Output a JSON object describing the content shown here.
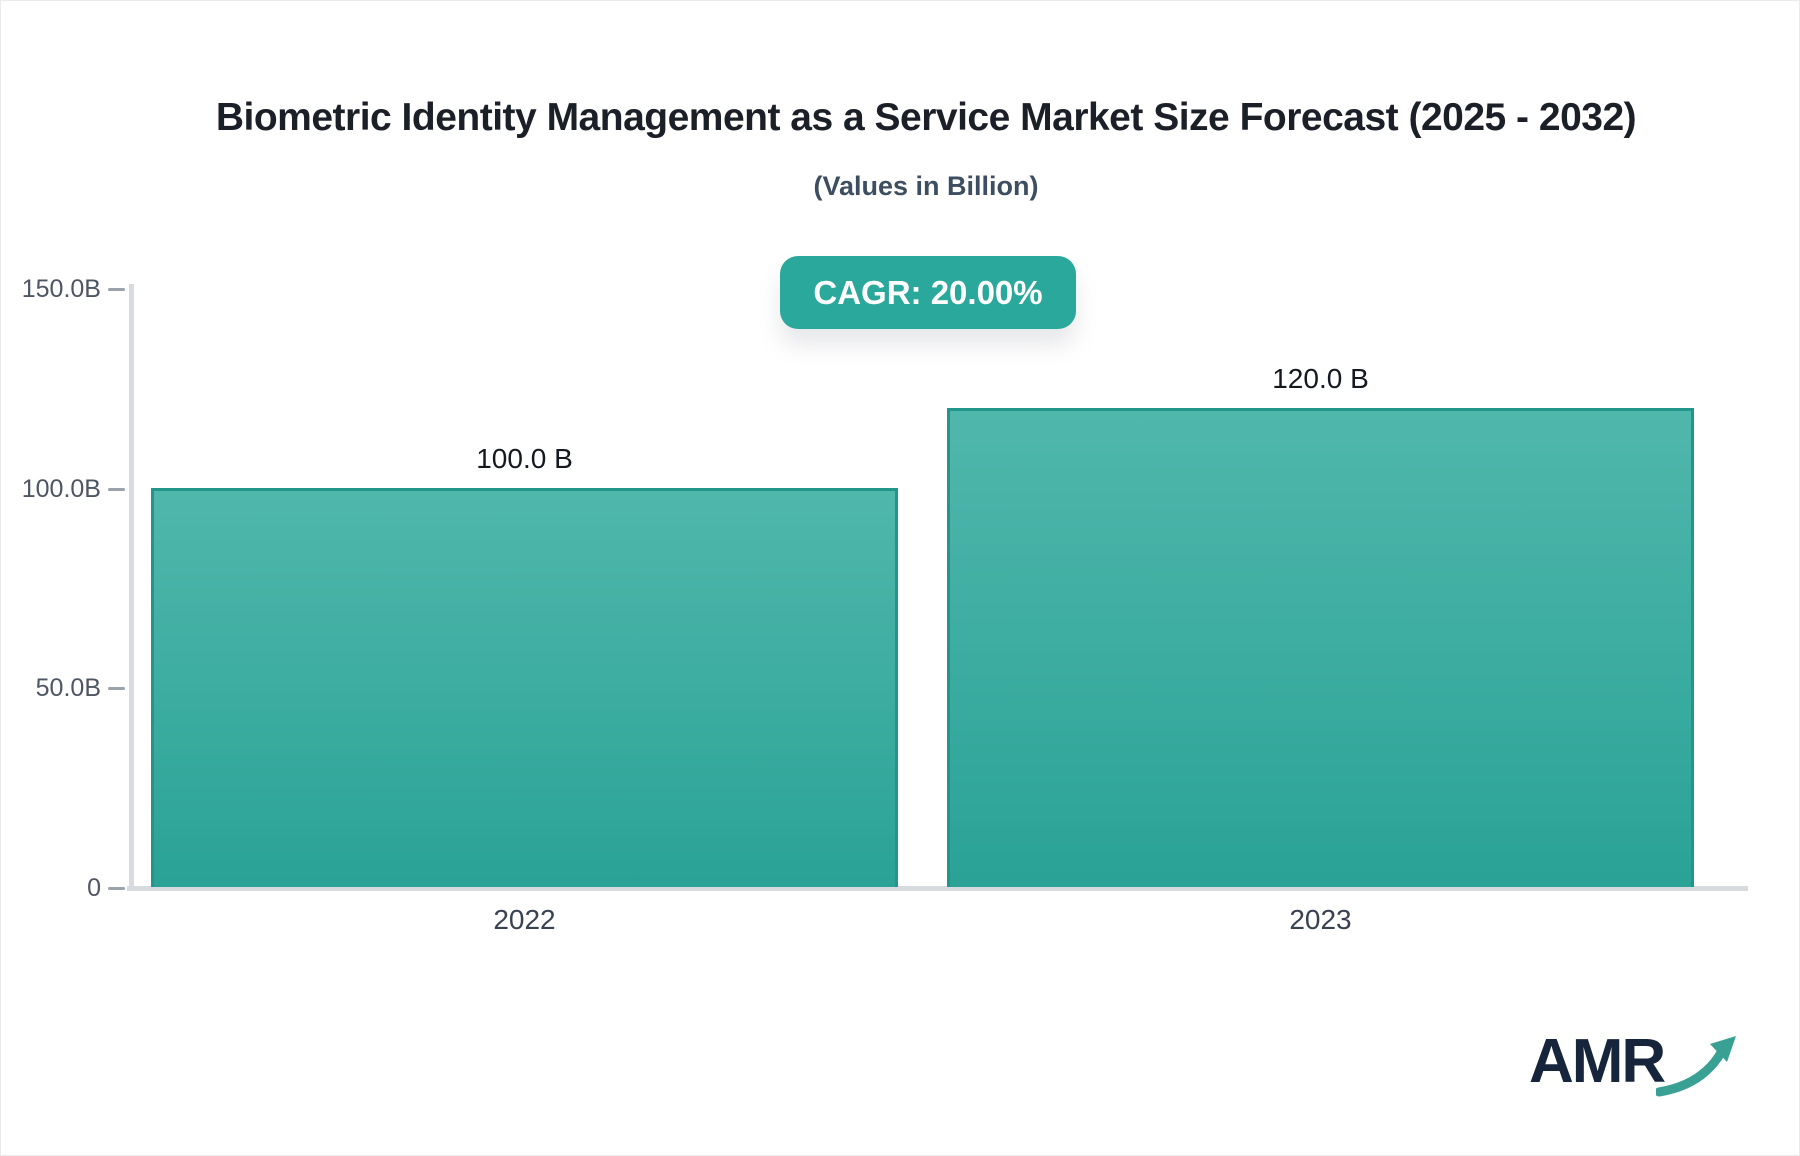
{
  "header": {
    "title": "Biometric Identity Management as a Service Market Size Forecast (2025 - 2032)",
    "subtitle": "(Values in Billion)"
  },
  "badge": {
    "label": "CAGR: 20.00%"
  },
  "chart_data": {
    "type": "bar",
    "title": "Biometric Identity Management as a Service Market Size Forecast (2025 - 2032)",
    "subtitle": "(Values in Billion)",
    "categories": [
      "2022",
      "2023"
    ],
    "values": [
      100.0,
      120.0
    ],
    "value_labels": [
      "100.0 B",
      "120.0 B"
    ],
    "xlabel": "",
    "ylabel": "",
    "ylim": [
      0,
      150
    ],
    "yticks": [
      {
        "label": "150.0B",
        "value": 150
      },
      {
        "label": "100.0B",
        "value": 100
      },
      {
        "label": "50.0B",
        "value": 50
      },
      {
        "label": "0",
        "value": 0
      }
    ],
    "grid": false,
    "legend": false,
    "colors": {
      "bar_gradient_top": "#50b7ac",
      "bar_gradient_bottom": "#2aa296",
      "bar_border": "#23968c",
      "badge_bg": "#2aa89b",
      "badge_text": "#ffffff",
      "axis_line": "#d7dade",
      "tick_mark": "#9aa2ac",
      "tick_label": "#4d5662",
      "title_text": "#1b1f27",
      "subtitle_text": "#3d4e60",
      "logo_navy": "#16243c",
      "logo_teal": "#38a193"
    }
  },
  "logo": {
    "text": "AMR",
    "arrow_icon": "trend-up-arrow"
  }
}
